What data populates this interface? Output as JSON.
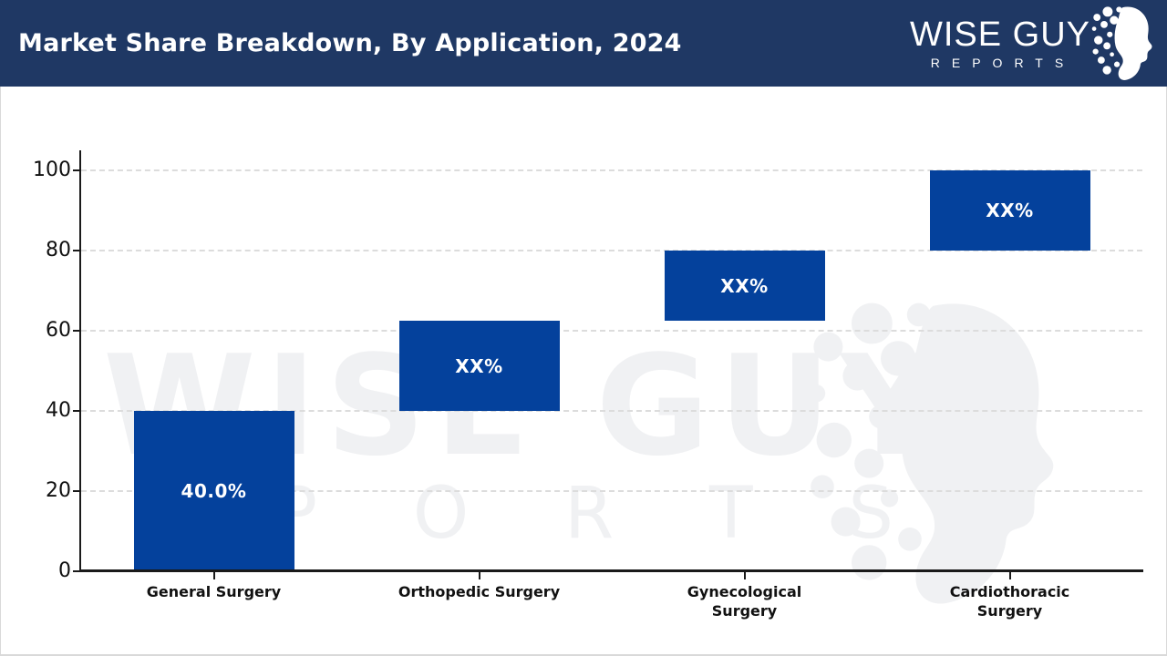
{
  "header": {
    "title": "Market Share Breakdown, By Application, 2024",
    "logo": {
      "line1": "WISE GUY",
      "line2": "REPORTS"
    }
  },
  "watermark": {
    "line1": "WISE GUY",
    "line2": "P O R T S"
  },
  "colors": {
    "header_bg": "#1f3864",
    "bar": "#04419c",
    "bar_label": "#ffffff",
    "axis": "#1a1a1a",
    "grid": "#dcdcdc",
    "tick_text": "#111111",
    "watermark": "#f0f1f3"
  },
  "chart_data": {
    "type": "bar",
    "subtype": "waterfall",
    "title": "Market Share Breakdown, By Application, 2024",
    "categories": [
      "General Surgery",
      "Orthopedic Surgery",
      "Gynecological\nSurgery",
      "Cardiothoracic\nSurgery"
    ],
    "segments": [
      {
        "category": "General Surgery",
        "start": 0,
        "end": 40,
        "label": "40.0%"
      },
      {
        "category": "Orthopedic Surgery",
        "start": 40,
        "end": 62.5,
        "label": "XX%"
      },
      {
        "category": "Gynecological Surgery",
        "start": 62.5,
        "end": 80,
        "label": "XX%"
      },
      {
        "category": "Cardiothoracic Surgery",
        "start": 80,
        "end": 100,
        "label": "XX%"
      }
    ],
    "ylim": [
      0,
      100
    ],
    "yticks": [
      0,
      20,
      40,
      60,
      80,
      100
    ],
    "xlabel": "",
    "ylabel": "",
    "grid": "horizontal-dashed",
    "legend": "none"
  }
}
